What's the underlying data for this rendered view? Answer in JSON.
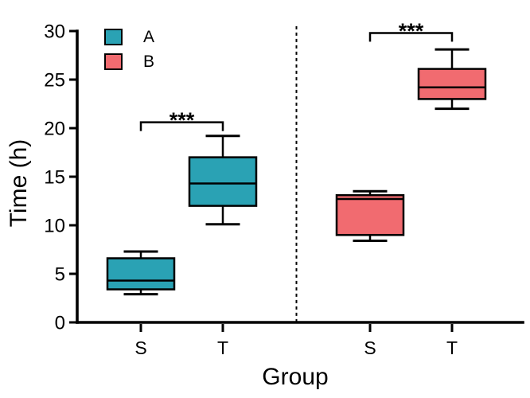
{
  "chart_data": {
    "type": "box",
    "title": "",
    "xlabel": "Group",
    "ylabel": "Time (h)",
    "ylim": [
      0,
      30
    ],
    "yticks": [
      0,
      5,
      10,
      15,
      20,
      25,
      30
    ],
    "categories": [
      "S",
      "T",
      "S",
      "T"
    ],
    "grid": false,
    "legend_position": "inside-top-left",
    "axis_color": "#000000",
    "series": [
      {
        "name": "A",
        "color": "#2AA2B4",
        "boxes": [
          {
            "category_index": 0,
            "whisker_low": 2.9,
            "q1": 3.4,
            "median": 4.3,
            "q3": 6.6,
            "whisker_high": 7.3
          },
          {
            "category_index": 1,
            "whisker_low": 10.1,
            "q1": 12.0,
            "median": 14.3,
            "q3": 17.0,
            "whisker_high": 19.2
          }
        ]
      },
      {
        "name": "B",
        "color": "#F16B70",
        "boxes": [
          {
            "category_index": 2,
            "whisker_low": 8.4,
            "q1": 9.0,
            "median": 12.7,
            "q3": 13.1,
            "whisker_high": 13.5
          },
          {
            "category_index": 3,
            "whisker_low": 22.0,
            "q1": 23.0,
            "median": 24.2,
            "q3": 26.1,
            "whisker_high": 28.1
          }
        ]
      }
    ],
    "annotations": [
      {
        "type": "significance-bracket",
        "label": "***",
        "from_category": 0,
        "to_category": 1,
        "y": 20.6,
        "drop": 0.9
      },
      {
        "type": "significance-bracket",
        "label": "***",
        "from_category": 2,
        "to_category": 3,
        "y": 29.8,
        "drop": 0.9
      }
    ],
    "separator": {
      "style": "dashed",
      "between_categories": [
        1,
        2
      ],
      "y_from": 0,
      "y_to": 30.5
    }
  }
}
